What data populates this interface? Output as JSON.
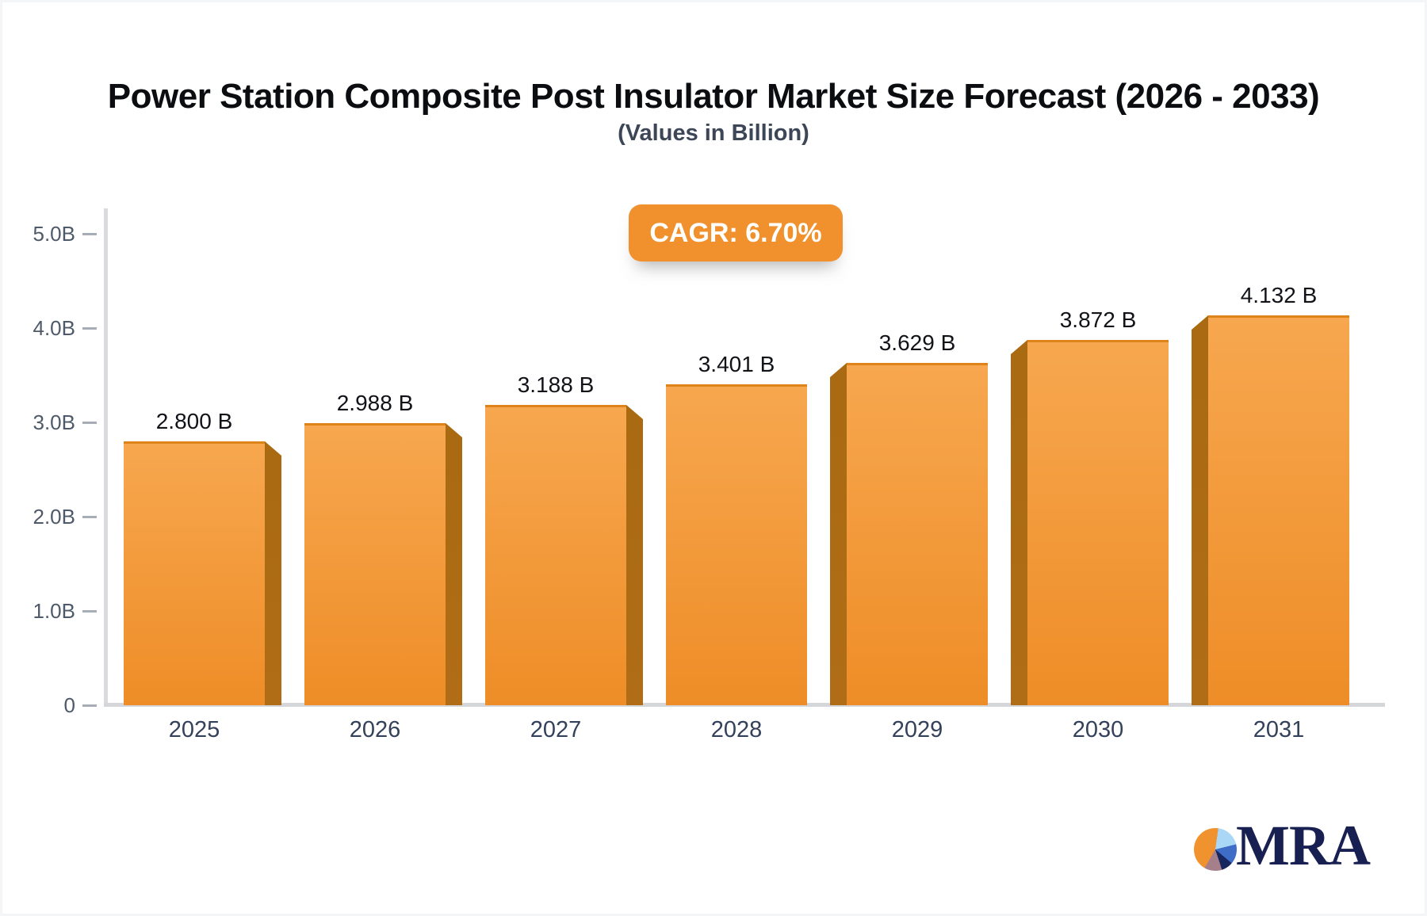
{
  "chart_data": {
    "type": "bar",
    "title": "Power Station Composite Post Insulator Market Size Forecast (2026 - 2033)",
    "subtitle": "(Values in Billion)",
    "cagr_label": "CAGR: 6.70%",
    "categories": [
      "2025",
      "2026",
      "2027",
      "2028",
      "2029",
      "2030",
      "2031"
    ],
    "values": [
      2.8,
      2.988,
      3.188,
      3.401,
      3.629,
      3.872,
      4.132
    ],
    "value_labels": [
      "2.800 B",
      "2.988 B",
      "3.188 B",
      "3.401 B",
      "3.629 B",
      "3.872 B",
      "4.132 B"
    ],
    "y_ticks": [
      {
        "label": "5.0B",
        "value": 5
      },
      {
        "label": "4.0B",
        "value": 4
      },
      {
        "label": "3.0B",
        "value": 3
      },
      {
        "label": "2.0B",
        "value": 2
      },
      {
        "label": "1.0B",
        "value": 1
      },
      {
        "label": "0",
        "value": 0
      }
    ],
    "ylim": [
      0,
      5
    ],
    "grid": false,
    "legend": "none",
    "colors": {
      "bar_face_top": "#f7a74f",
      "bar_face_bottom": "#ee8d27",
      "bar_top_edge": "#dd8319",
      "bar_side_dark": "#b06d15",
      "bar_side_dark_2": "#a96a12",
      "badge_background": "#f0912d",
      "axis_line": "#d6d8dc",
      "tick_text": "#4e5a69",
      "category_text": "#33415a",
      "value_text": "#111318"
    }
  },
  "logo": {
    "text": "MRA",
    "pie_colors": {
      "orange": "#f0922d",
      "light_blue": "#a9d7f5",
      "royal_blue": "#3e6cc6",
      "navy": "#17265c",
      "mauve": "#a5808a"
    }
  }
}
